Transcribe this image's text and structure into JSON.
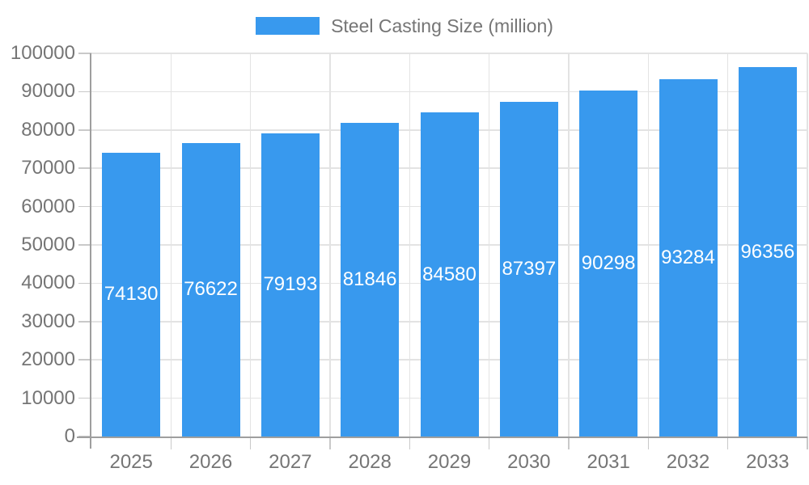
{
  "legend": {
    "label": "Steel Casting Size (million)"
  },
  "chart_data": {
    "type": "bar",
    "title": "Steel Casting Size (million)",
    "categories": [
      "2025",
      "2026",
      "2027",
      "2028",
      "2029",
      "2030",
      "2031",
      "2032",
      "2033"
    ],
    "values": [
      74130,
      76622,
      79193,
      81846,
      84580,
      87397,
      90298,
      93284,
      96356
    ],
    "xlabel": "",
    "ylabel": "",
    "ylim": [
      0,
      100000
    ],
    "ytick_step": 10000,
    "ytick_labels": [
      "0",
      "10000",
      "20000",
      "30000",
      "40000",
      "50000",
      "60000",
      "70000",
      "80000",
      "90000",
      "100000"
    ],
    "grid": true,
    "legend_position": "top-center",
    "bar_labels_inside": true,
    "colors": {
      "bar": "#3899EE",
      "bar_label": "#FFFFFF",
      "axis_text": "#757575",
      "grid_line": "#E3E3E3",
      "axis_line": "#9E9E9E",
      "tick": "#C9C9C9",
      "background": "#FFFFFF"
    }
  }
}
